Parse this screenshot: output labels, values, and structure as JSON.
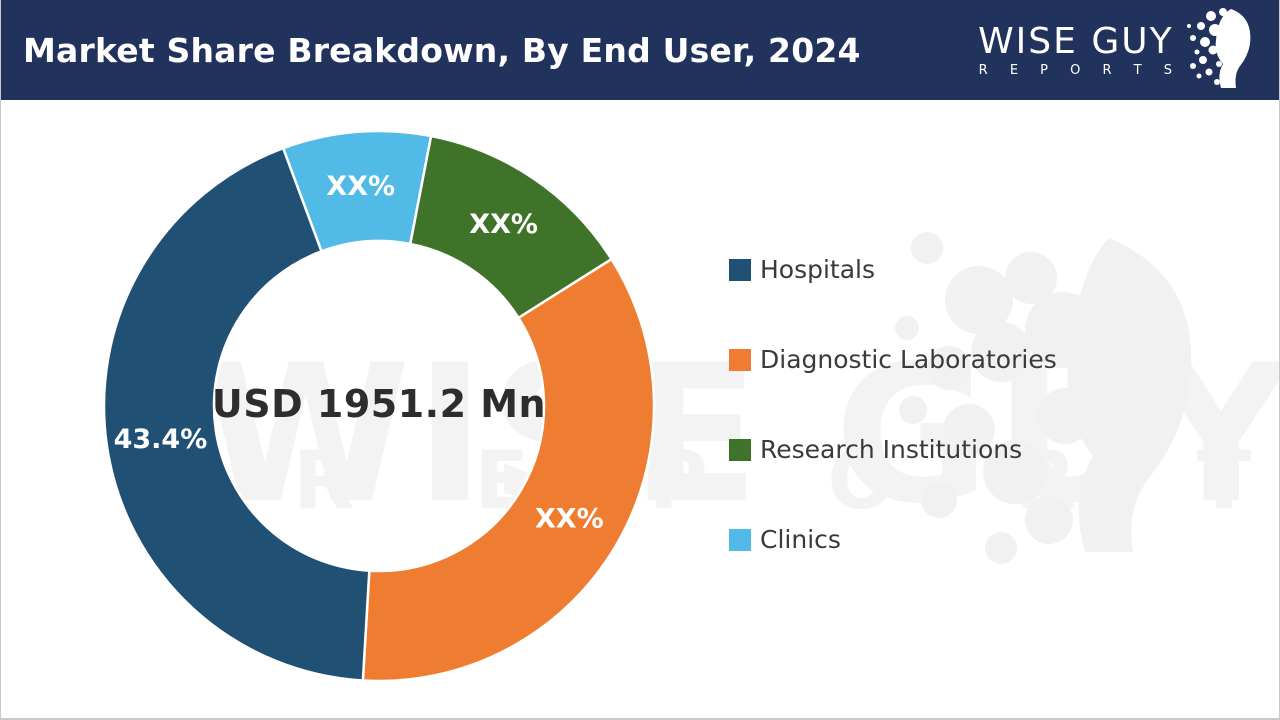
{
  "header": {
    "title": "Market Share Breakdown, By End User, 2024",
    "bg_color": "#21335C",
    "logo": {
      "line1": "WISE GUY",
      "line2": "R E P O R T S"
    }
  },
  "watermark": {
    "line1": "WISE GUY",
    "line2": "R E P O R T S"
  },
  "chart_data": {
    "type": "pie",
    "subtype": "donut",
    "title": "Market Share Breakdown, By End User, 2024",
    "center_label": "USD 1951.2 Mn",
    "start_angle_deg": -20.4,
    "legend_position": "right",
    "slices": [
      {
        "name": "Clinics",
        "value": 8.7,
        "label": "XX%",
        "color": "#52BAE7"
      },
      {
        "name": "Research Institutions",
        "value": 13.0,
        "label": "XX%",
        "color": "#3E7329"
      },
      {
        "name": "Diagnostic Laboratories",
        "value": 34.9,
        "label": "XX%",
        "color": "#EE7D32"
      },
      {
        "name": "Hospitals",
        "value": 43.4,
        "label": "43.4%",
        "color": "#215075"
      }
    ],
    "legend": [
      {
        "label": "Hospitals",
        "color": "#215075"
      },
      {
        "label": "Diagnostic Laboratories",
        "color": "#EE7D32"
      },
      {
        "label": "Research Institutions",
        "color": "#3E7329"
      },
      {
        "label": "Clinics",
        "color": "#52BAE7"
      }
    ]
  }
}
